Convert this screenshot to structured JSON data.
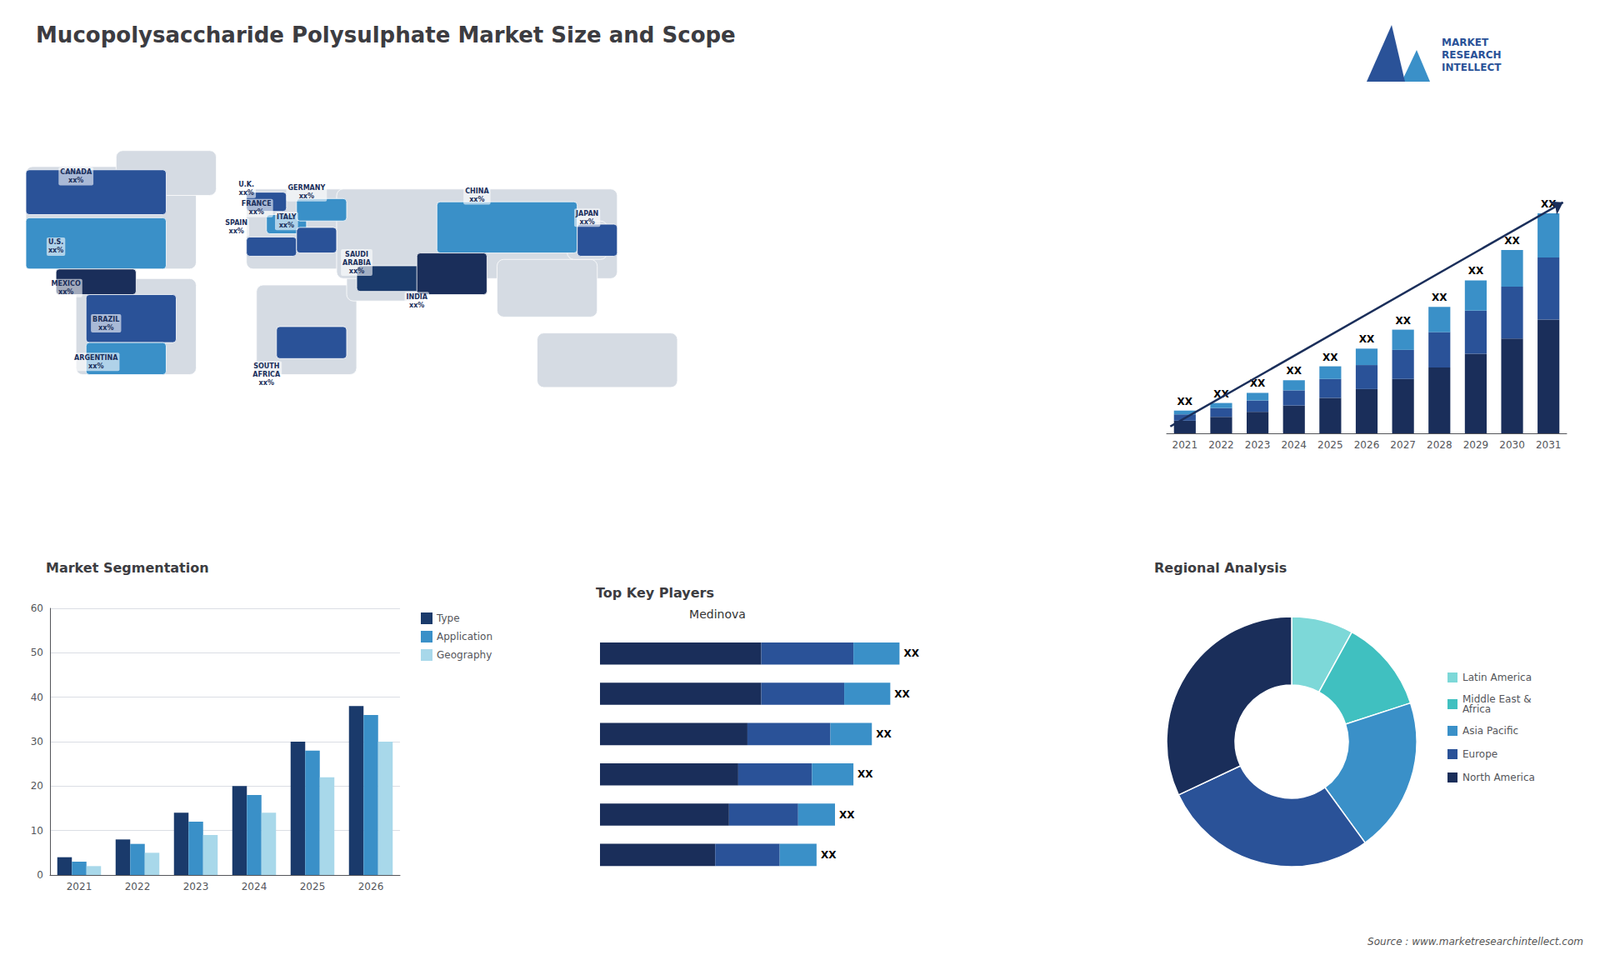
{
  "title": "Mucopolysaccharide Polysulphate Market Size and Scope",
  "annotations": [
    "MARKET\nRESEARCH\nINTELLECT",
    "Source : www.marketresearchintellect.com"
  ],
  "chart_data": [
    {
      "type": "map",
      "annotations": [
        "CANADA\nxx%",
        "U.S.\nxx%",
        "MEXICO\nxx%",
        "BRAZIL\nxx%",
        "ARGENTINA\nxx%",
        "U.K.\nxx%",
        "FRANCE\nxx%",
        "SPAIN\nxx%",
        "GERMANY\nxx%",
        "ITALY\nxx%",
        "SAUDI\nARABIA\nxx%",
        "SOUTH\nAFRICA\nxx%",
        "CHINA\nxx%",
        "INDIA\nxx%",
        "JAPAN\nxx%"
      ],
      "colors": [
        "#2a5298",
        "#3a90c8",
        "#1a2e5a",
        "#2a5298",
        "#3a90c8",
        "#2a5298",
        "#3a90c8",
        "#2a5298",
        "#3a90c8",
        "#2a5298",
        "#1a3a6b",
        "#2a5298",
        "#3a90c8",
        "#1a2e5a",
        "#2a5298"
      ]
    },
    {
      "type": "bar",
      "stacked": true,
      "tick_labels": "x",
      "categories": [
        "2021",
        "2022",
        "2023",
        "2024",
        "2025",
        "2026",
        "2027",
        "2028",
        "2029",
        "2030",
        "2031"
      ],
      "series": [
        {
          "color": "#1a2e5a",
          "values": [
            1,
            1.3,
            1.7,
            2.2,
            2.8,
            3.5,
            4.3,
            5.2,
            6.3,
            7.5,
            9.0
          ]
        },
        {
          "color": "#2a5298",
          "values": [
            0.5,
            0.7,
            0.9,
            1.2,
            1.5,
            1.9,
            2.3,
            2.8,
            3.4,
            4.1,
            4.9
          ]
        },
        {
          "color": "#3a90c8",
          "values": [
            0.3,
            0.4,
            0.6,
            0.8,
            1.0,
            1.3,
            1.6,
            2.0,
            2.4,
            2.9,
            3.5
          ],
          "value_labels": [
            "XX",
            "XX",
            "XX",
            "XX",
            "XX",
            "XX",
            "XX",
            "XX",
            "XX",
            "XX",
            "XX"
          ]
        }
      ],
      "ylim": [
        0,
        21.75
      ]
    },
    {
      "type": "bar",
      "title": "Market Segmentation",
      "categories": [
        "2021",
        "2022",
        "2023",
        "2024",
        "2025",
        "2026"
      ],
      "series": [
        {
          "name": "Type",
          "color": "#1a3a6b",
          "values": [
            4,
            8,
            14,
            20,
            30,
            38
          ]
        },
        {
          "name": "Application",
          "color": "#3a90c8",
          "values": [
            3,
            7,
            12,
            18,
            28,
            36
          ]
        },
        {
          "name": "Geography",
          "color": "#a8d8ea",
          "values": [
            2,
            5,
            9,
            14,
            22,
            30
          ]
        }
      ],
      "ylim": [
        0,
        60
      ],
      "yticks": [
        0,
        10,
        20,
        30,
        40,
        50,
        60
      ],
      "grid": true,
      "legend": "right"
    },
    {
      "type": "bar",
      "title": "Top Key Players",
      "orientation": "horizontal",
      "stacked": true,
      "tick_labels": false,
      "annotations": [
        "Medinova"
      ],
      "categories": [
        null,
        null,
        null,
        null,
        null,
        null
      ],
      "series": [
        {
          "color": "#1a2e5a",
          "values": [
            0.35,
            0.35,
            0.32,
            0.3,
            0.28,
            0.25
          ]
        },
        {
          "color": "#2a5298",
          "values": [
            0.2,
            0.18,
            0.18,
            0.16,
            0.15,
            0.14
          ]
        },
        {
          "color": "#3a90c8",
          "values": [
            0.1,
            0.1,
            0.09,
            0.09,
            0.08,
            0.08
          ],
          "value_labels": [
            "XX",
            "XX",
            "XX",
            "XX",
            "XX",
            "XX"
          ]
        }
      ],
      "xlim": [
        0,
        0.85
      ]
    },
    {
      "type": "pie",
      "title": "Regional Analysis",
      "legend": "right",
      "categories": [
        "Latin America",
        "Middle East &\nAfrica",
        "Asia Pacific",
        "Europe",
        "North America"
      ],
      "values": [
        8,
        12,
        20,
        28,
        32
      ],
      "colors": [
        "#7dd8d8",
        "#40c0c0",
        "#3a90c8",
        "#2a5298",
        "#1a2e5a"
      ]
    }
  ]
}
